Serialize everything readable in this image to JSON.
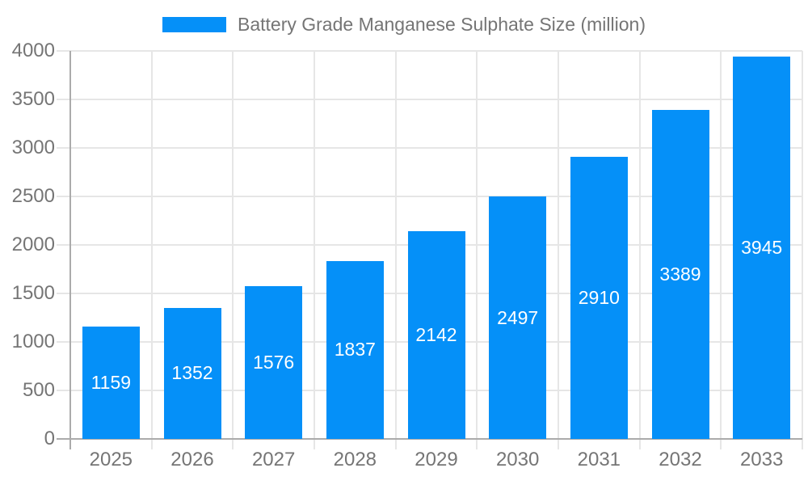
{
  "chart_data": {
    "type": "bar",
    "title": "Battery Grade Manganese Sulphate Size (million)",
    "categories": [
      "2025",
      "2026",
      "2027",
      "2028",
      "2029",
      "2030",
      "2031",
      "2032",
      "2033"
    ],
    "values": [
      1159,
      1352,
      1576,
      1837,
      2142,
      2497,
      2910,
      3389,
      3945
    ],
    "xlabel": "",
    "ylabel": "",
    "ylim": [
      0,
      4000
    ],
    "yticks": [
      0,
      500,
      1000,
      1500,
      2000,
      2500,
      3000,
      3500,
      4000
    ],
    "grid": "both",
    "legend_position": "top",
    "show_value_labels": true
  },
  "legend": {
    "label": "Battery Grade Manganese Sulphate Size (million)"
  },
  "colors": {
    "bar": "#0590F8",
    "grid_line": "#e6e6e6",
    "axis_line": "#ababab",
    "tick_label": "#757575",
    "legend_text": "#757575",
    "value_label": "#ffffff",
    "background": "#ffffff"
  }
}
